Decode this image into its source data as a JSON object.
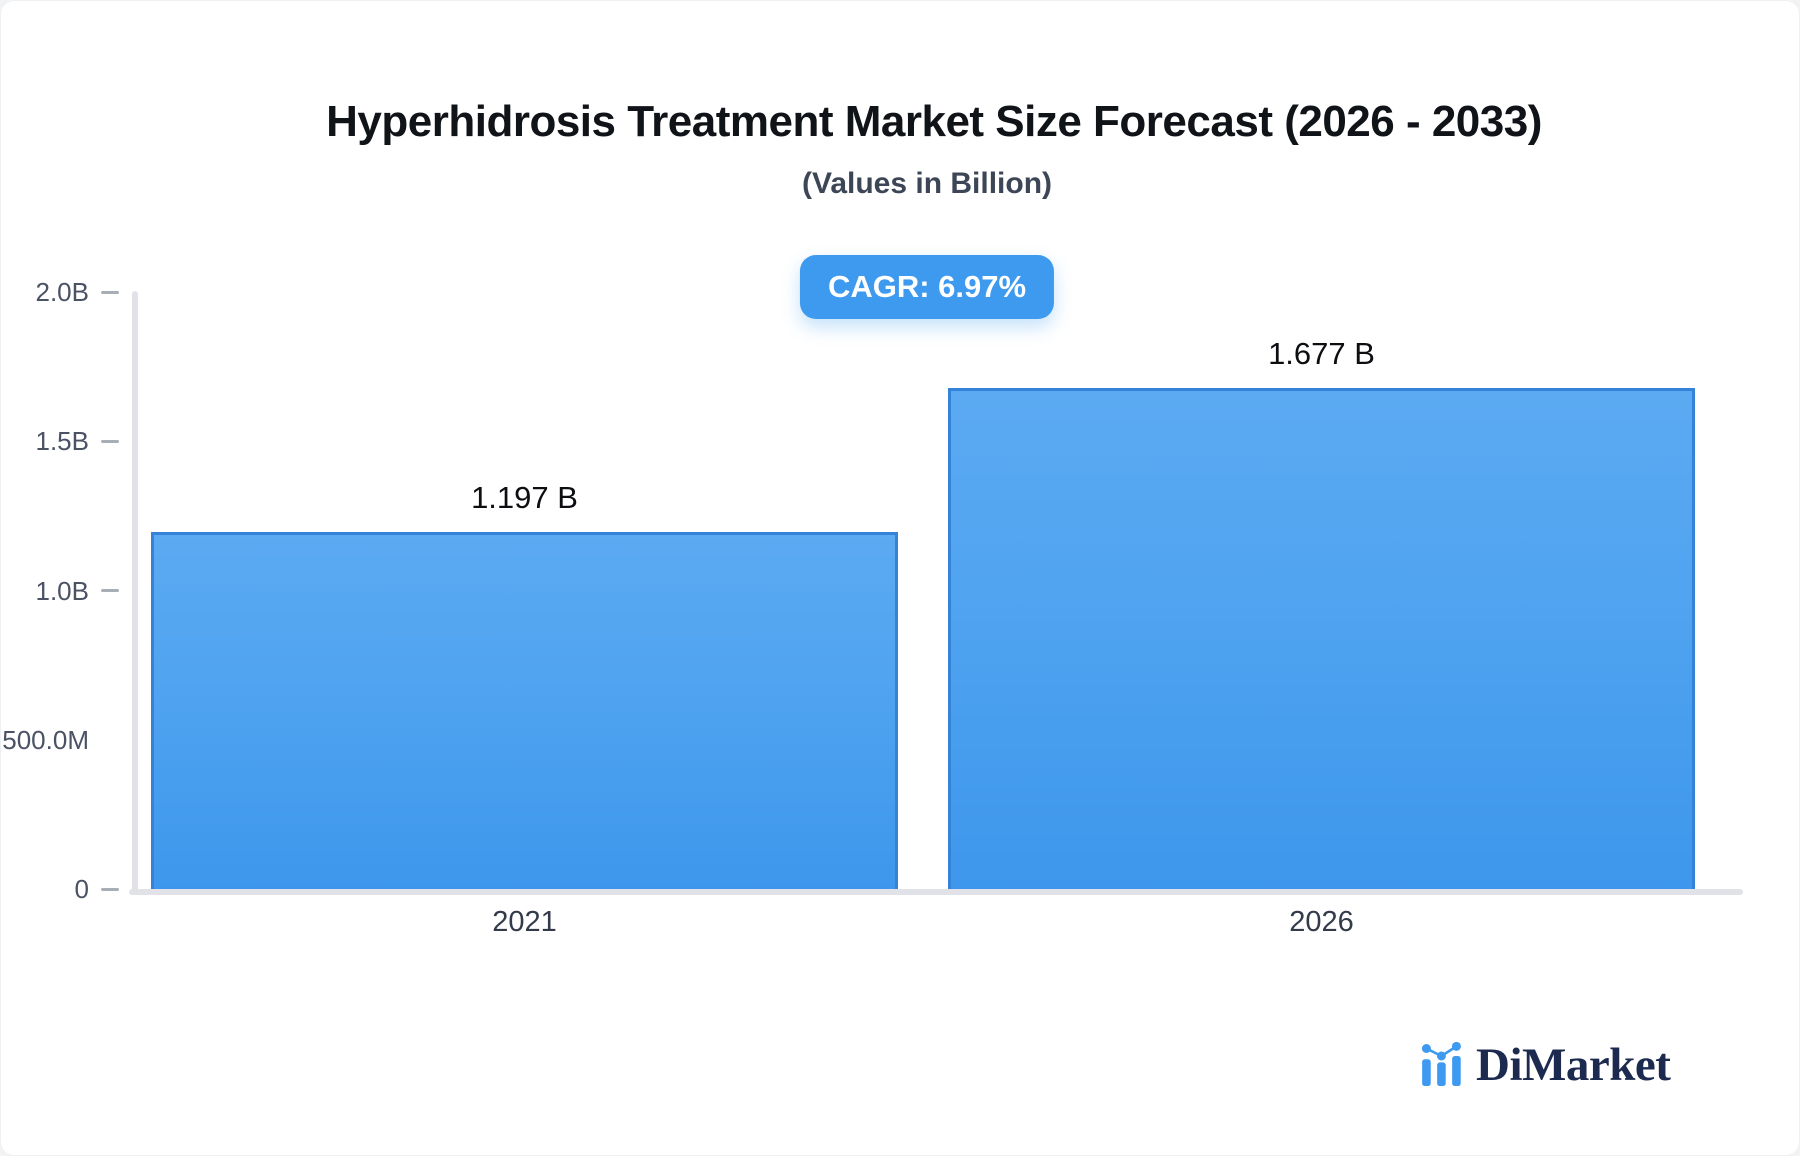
{
  "header": {
    "title": "Hyperhidrosis Treatment Market Size Forecast (2026 - 2033)",
    "subtitle": "(Values in Billion)",
    "cagr_badge": "CAGR: 6.97%"
  },
  "logo": {
    "text": "DiMarket"
  },
  "colors": {
    "badge_bg": "#3D9AEF",
    "bar_fill_top": "#5BAAF2",
    "bar_fill_bottom": "#3E97EC",
    "bar_border": "#3583D8",
    "axis_line": "#E0E2E8",
    "tick": "#A9AEB6",
    "logo_blue": "#3D9AF0"
  },
  "chart_data": {
    "type": "bar",
    "title": "Hyperhidrosis Treatment Market Size Forecast (2026 - 2033)",
    "subtitle": "(Values in Billion)",
    "annotation": "CAGR: 6.97%",
    "categories": [
      "2021",
      "2026"
    ],
    "values": [
      1.197,
      1.677
    ],
    "value_labels": [
      "1.197 B",
      "1.677 B"
    ],
    "ylim": [
      0,
      2.0
    ],
    "y_ticks": [
      {
        "label": "2.0B",
        "value": 2.0,
        "tick": true
      },
      {
        "label": "1.5B",
        "value": 1.5,
        "tick": true
      },
      {
        "label": "1.0B",
        "value": 1.0,
        "tick": true
      },
      {
        "label": "500.0M",
        "value": 0.5,
        "tick": false
      },
      {
        "label": "0",
        "value": 0.0,
        "tick": true
      }
    ],
    "grid": false,
    "legend": false
  }
}
